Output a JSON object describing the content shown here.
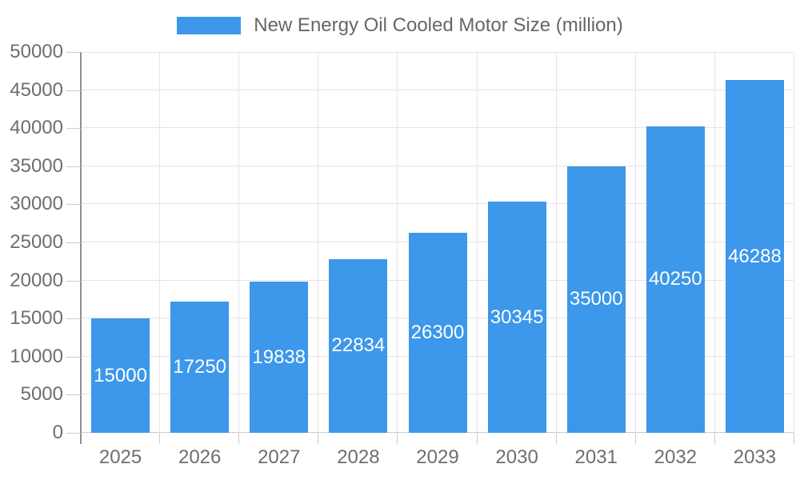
{
  "chart_data": {
    "type": "bar",
    "title": "New Energy Oil Cooled Motor Size (million)",
    "series_name": "New Energy Oil Cooled Motor Size (million)",
    "categories": [
      "2025",
      "2026",
      "2027",
      "2028",
      "2029",
      "2030",
      "2031",
      "2032",
      "2033"
    ],
    "values": [
      15000,
      17250,
      19838,
      22834,
      26300,
      30345,
      35000,
      40250,
      46288
    ],
    "data_labels": [
      "15000",
      "17250",
      "19838",
      "22834",
      "26300",
      "30345",
      "35000",
      "40250",
      "46288"
    ],
    "xlabel": "",
    "ylabel": "",
    "ylim": [
      0,
      50000
    ],
    "ytick_step": 5000,
    "yticks": [
      0,
      5000,
      10000,
      15000,
      20000,
      25000,
      30000,
      35000,
      40000,
      45000,
      50000
    ],
    "grid": true,
    "legend_position": "top-center",
    "bar_color": "#3d97ea",
    "value_label_color": "#ffffff",
    "axis_text_color": "#6e6e6e",
    "gridline_color": "#e4e4e4"
  },
  "legend": {
    "label": "New Energy Oil Cooled Motor Size (million)"
  }
}
